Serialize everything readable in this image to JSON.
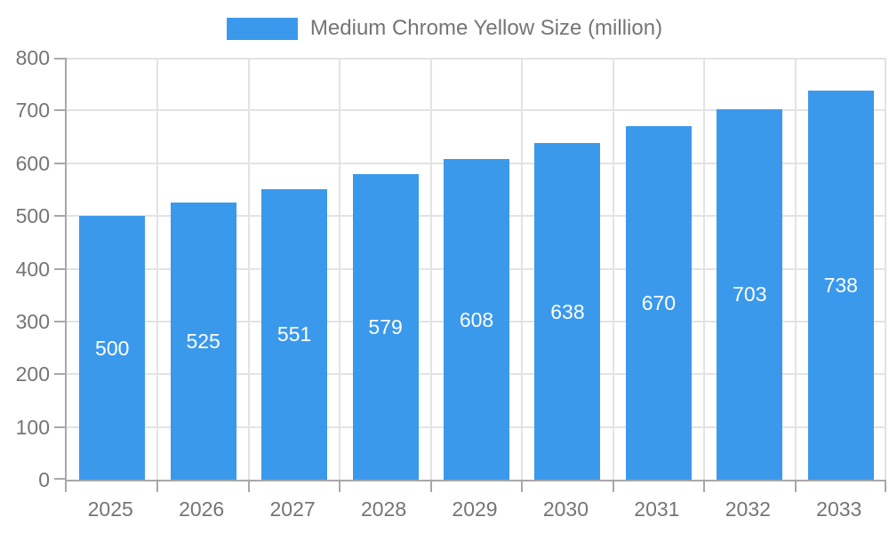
{
  "legend": {
    "label": "Medium Chrome Yellow Size (million)"
  },
  "colors": {
    "bar": "#3B99EC",
    "grid": "#E3E3E3",
    "axis": "#A8A8A8",
    "tick_label": "#757575",
    "value_label": "#FFFFFF",
    "legend_text": "#757575"
  },
  "chart_data": {
    "type": "bar",
    "categories": [
      "2025",
      "2026",
      "2027",
      "2028",
      "2029",
      "2030",
      "2031",
      "2032",
      "2033"
    ],
    "values": [
      500,
      525,
      551,
      579,
      608,
      638,
      670,
      703,
      738
    ],
    "title": "Medium Chrome Yellow Size (million)",
    "xlabel": "",
    "ylabel": "",
    "ylim": [
      0,
      800
    ],
    "yticks": [
      0,
      100,
      200,
      300,
      400,
      500,
      600,
      700,
      800
    ],
    "grid": true,
    "legend_position": "top",
    "value_labels": "inside-center",
    "value_label_values": [
      "500",
      "525",
      "551",
      "579",
      "608",
      "638",
      "670",
      "703",
      "738"
    ]
  }
}
